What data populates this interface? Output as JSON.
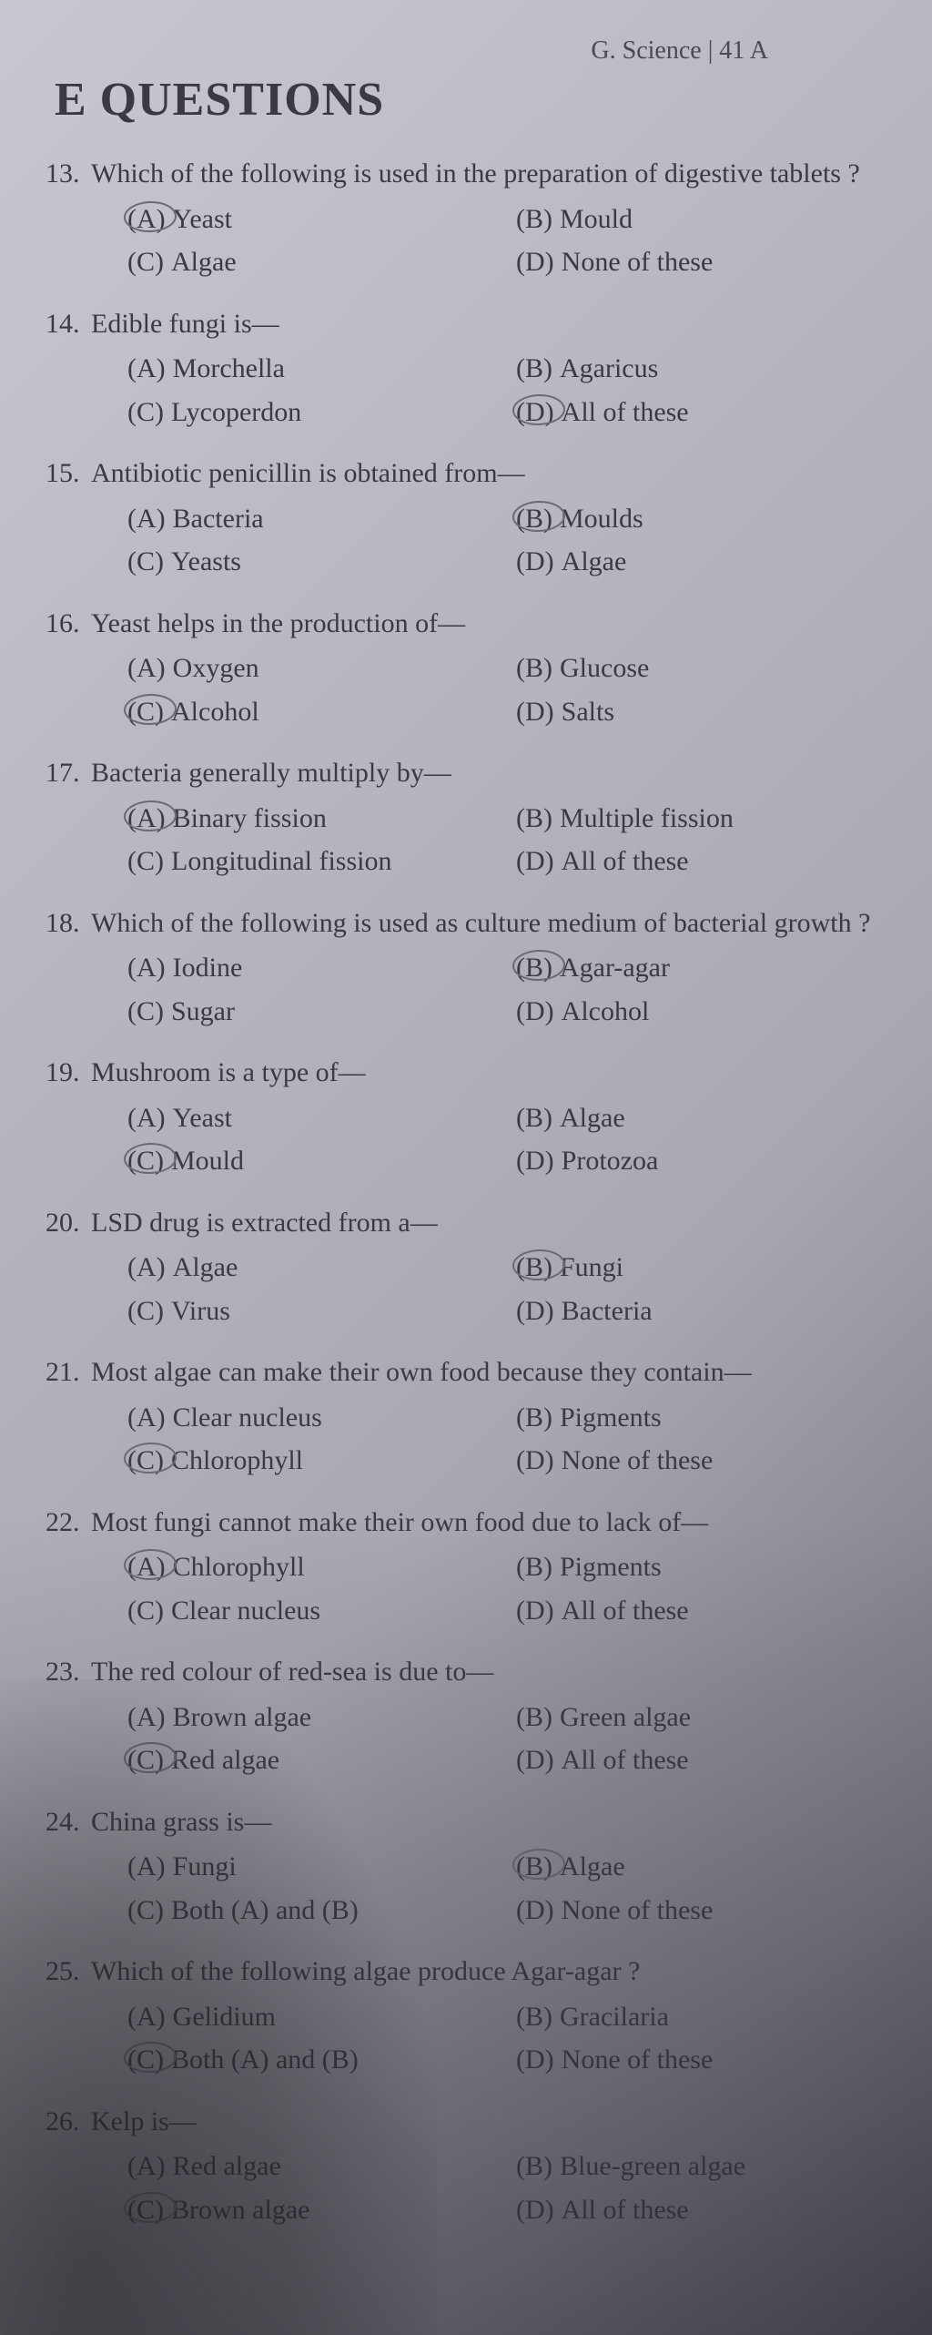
{
  "header": "G. Science | 41 A",
  "section_title": "E QUESTIONS",
  "questions": [
    {
      "num": "13.",
      "text": "Which of the following is used in the preparation of digestive tablets ?",
      "options": [
        {
          "l": "(A)",
          "t": "Yeast",
          "m": true
        },
        {
          "l": "(B)",
          "t": "Mould"
        },
        {
          "l": "(C)",
          "t": "Algae"
        },
        {
          "l": "(D)",
          "t": "None of these"
        }
      ]
    },
    {
      "num": "14.",
      "text": "Edible fungi is—",
      "options": [
        {
          "l": "(A)",
          "t": "Morchella"
        },
        {
          "l": "(B)",
          "t": "Agaricus"
        },
        {
          "l": "(C)",
          "t": "Lycoperdon"
        },
        {
          "l": "(D)",
          "t": "All of these",
          "m": true
        }
      ]
    },
    {
      "num": "15.",
      "text": "Antibiotic penicillin is obtained from—",
      "options": [
        {
          "l": "(A)",
          "t": "Bacteria"
        },
        {
          "l": "(B)",
          "t": "Moulds",
          "m": true
        },
        {
          "l": "(C)",
          "t": "Yeasts"
        },
        {
          "l": "(D)",
          "t": "Algae"
        }
      ]
    },
    {
      "num": "16.",
      "text": "Yeast helps in the production of—",
      "options": [
        {
          "l": "(A)",
          "t": "Oxygen"
        },
        {
          "l": "(B)",
          "t": "Glucose"
        },
        {
          "l": "(C)",
          "t": "Alcohol",
          "m": true
        },
        {
          "l": "(D)",
          "t": "Salts"
        }
      ]
    },
    {
      "num": "17.",
      "text": "Bacteria generally multiply by—",
      "options": [
        {
          "l": "(A)",
          "t": "Binary fission",
          "m": true
        },
        {
          "l": "(B)",
          "t": "Multiple fission"
        },
        {
          "l": "(C)",
          "t": "Longitudinal fission"
        },
        {
          "l": "(D)",
          "t": "All of these"
        }
      ]
    },
    {
      "num": "18.",
      "text": "Which of the following is used as culture medium of bacterial growth ?",
      "options": [
        {
          "l": "(A)",
          "t": "Iodine"
        },
        {
          "l": "(B)",
          "t": "Agar-agar",
          "m": true
        },
        {
          "l": "(C)",
          "t": "Sugar"
        },
        {
          "l": "(D)",
          "t": "Alcohol"
        }
      ]
    },
    {
      "num": "19.",
      "text": "Mushroom is a type of—",
      "options": [
        {
          "l": "(A)",
          "t": "Yeast"
        },
        {
          "l": "(B)",
          "t": "Algae"
        },
        {
          "l": "(C)",
          "t": "Mould",
          "m": true
        },
        {
          "l": "(D)",
          "t": "Protozoa"
        }
      ]
    },
    {
      "num": "20.",
      "text": "LSD drug is extracted from a—",
      "options": [
        {
          "l": "(A)",
          "t": "Algae"
        },
        {
          "l": "(B)",
          "t": "Fungi",
          "m": true
        },
        {
          "l": "(C)",
          "t": "Virus"
        },
        {
          "l": "(D)",
          "t": "Bacteria"
        }
      ]
    },
    {
      "num": "21.",
      "text": "Most algae can make their own food because they contain—",
      "options": [
        {
          "l": "(A)",
          "t": "Clear nucleus"
        },
        {
          "l": "(B)",
          "t": "Pigments"
        },
        {
          "l": "(C)",
          "t": "Chlorophyll",
          "m": true
        },
        {
          "l": "(D)",
          "t": "None of these"
        }
      ]
    },
    {
      "num": "22.",
      "text": "Most fungi cannot make their own food due to lack of—",
      "options": [
        {
          "l": "(A)",
          "t": "Chlorophyll",
          "m": true
        },
        {
          "l": "(B)",
          "t": "Pigments"
        },
        {
          "l": "(C)",
          "t": "Clear nucleus"
        },
        {
          "l": "(D)",
          "t": "All of these"
        }
      ]
    },
    {
      "num": "23.",
      "text": "The red colour of red-sea is due to—",
      "options": [
        {
          "l": "(A)",
          "t": "Brown algae"
        },
        {
          "l": "(B)",
          "t": "Green algae"
        },
        {
          "l": "(C)",
          "t": "Red algae",
          "m": true
        },
        {
          "l": "(D)",
          "t": "All of these"
        }
      ]
    },
    {
      "num": "24.",
      "text": "China grass is—",
      "options": [
        {
          "l": "(A)",
          "t": "Fungi"
        },
        {
          "l": "(B)",
          "t": "Algae",
          "m": true
        },
        {
          "l": "(C)",
          "t": "Both (A) and (B)"
        },
        {
          "l": "(D)",
          "t": "None of these"
        }
      ]
    },
    {
      "num": "25.",
      "text": "Which of the following algae produce Agar-agar ?",
      "options": [
        {
          "l": "(A)",
          "t": "Gelidium"
        },
        {
          "l": "(B)",
          "t": "Gracilaria"
        },
        {
          "l": "(C)",
          "t": "Both (A) and (B)",
          "m": true
        },
        {
          "l": "(D)",
          "t": "None of these"
        }
      ]
    },
    {
      "num": "26.",
      "text": "Kelp is—",
      "options": [
        {
          "l": "(A)",
          "t": "Red algae"
        },
        {
          "l": "(B)",
          "t": "Blue-green algae"
        },
        {
          "l": "(C)",
          "t": "Brown algae",
          "m": true
        },
        {
          "l": "(D)",
          "t": "All of these"
        }
      ]
    }
  ]
}
